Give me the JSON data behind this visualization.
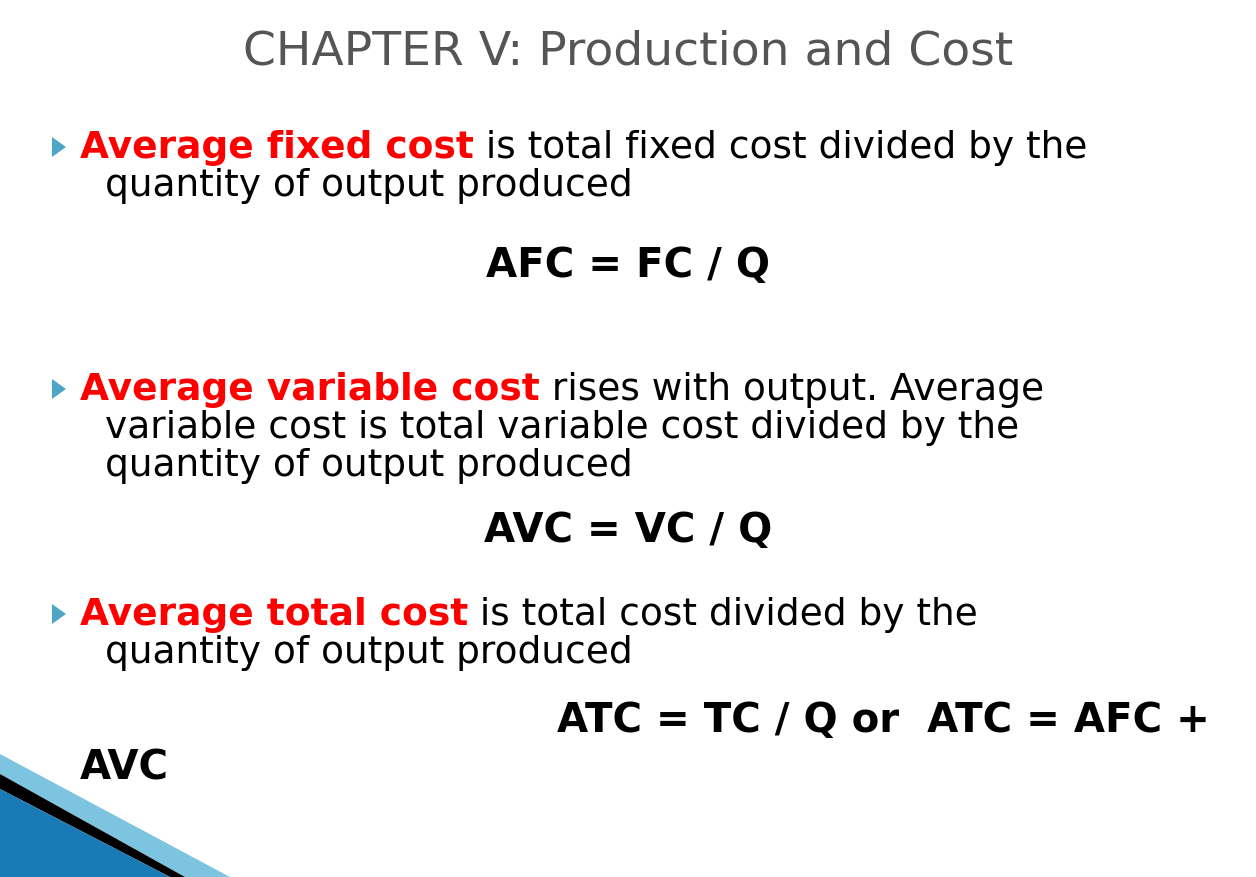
{
  "title": "CHAPTER V: Production and Cost",
  "title_color": "#555555",
  "title_fontsize": 34,
  "background_color": "#ffffff",
  "bullet_color": "#4da6c8",
  "red_color": "#ff0000",
  "black_color": "#000000",
  "text_fontsize": 27,
  "formula_fontsize": 29,
  "corner_color1": "#1a7ab5",
  "corner_color2": "#7dc4e0",
  "corner_color3": "#000000",
  "bullet1_red": "Average fixed cost",
  "bullet1_black": " is total fixed cost divided by the",
  "bullet1_line2": "quantity of output produced",
  "formula1": "AFC = FC / Q",
  "bullet2_red": "Average variable cost",
  "bullet2_black": " rises with output. Average",
  "bullet2_line2": "variable cost is total variable cost divided by the",
  "bullet2_line3": "quantity of output produced",
  "formula2": "AVC = VC / Q",
  "bullet3_red": "Average total cost",
  "bullet3_black": " is total cost divided by the",
  "bullet3_line2": "quantity of output produced",
  "formula3a": "ATC = TC / Q or  ATC = AFC +",
  "formula3b": "AVC"
}
